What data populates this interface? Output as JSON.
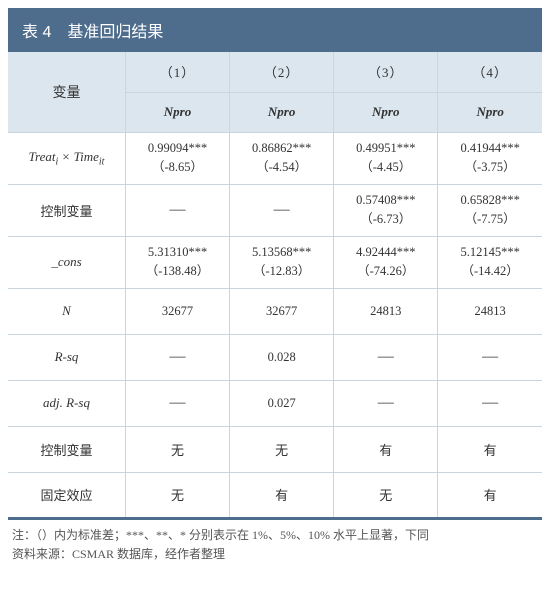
{
  "colors": {
    "title_bg": "#4e6d8d",
    "header_bg": "#dbe6ee",
    "thin_border": "#c9d6df",
    "thick_border": "#4e6d8d",
    "body_text": "#333333",
    "note_text": "#555555"
  },
  "title": "表 4　基准回归结果",
  "var_header": "变量",
  "col_headers": [
    "（1）",
    "（2）",
    "（3）",
    "（4）"
  ],
  "dep_vars": [
    "Npro",
    "Npro",
    "Npro",
    "Npro"
  ],
  "rows": [
    {
      "label_kind": "treat",
      "label_main": "Treat",
      "label_sub1": "i",
      "label_mid": "×",
      "label_main2": "Time",
      "label_sub2": "it",
      "cells": [
        {
          "coef": "0.99094***",
          "t": "（-8.65）"
        },
        {
          "coef": "0.86862***",
          "t": "（-4.54）"
        },
        {
          "coef": "0.49951***",
          "t": "（-4.45）"
        },
        {
          "coef": "0.41944***",
          "t": "（-3.75）"
        }
      ]
    },
    {
      "label_kind": "cn",
      "label": "控制变量",
      "cells": [
        {
          "dash": "—"
        },
        {
          "dash": "—"
        },
        {
          "coef": "0.57408***",
          "t": "（-6.73）"
        },
        {
          "coef": "0.65828***",
          "t": "（-7.75）"
        }
      ]
    },
    {
      "label_kind": "it",
      "label": "_cons",
      "cells": [
        {
          "coef": "5.31310***",
          "t": "（-138.48）"
        },
        {
          "coef": "5.13568***",
          "t": "（-12.83）"
        },
        {
          "coef": "4.92444***",
          "t": "（-74.26）"
        },
        {
          "coef": "5.12145***",
          "t": "（-14.42）"
        }
      ]
    },
    {
      "label_kind": "it",
      "label": "N",
      "single": true,
      "cells": [
        {
          "val": "32677"
        },
        {
          "val": "32677"
        },
        {
          "val": "24813"
        },
        {
          "val": "24813"
        }
      ]
    },
    {
      "label_kind": "it",
      "label": "R-sq",
      "single": true,
      "cells": [
        {
          "dash": "—"
        },
        {
          "val": "0.028"
        },
        {
          "dash": "—"
        },
        {
          "dash": "—"
        }
      ]
    },
    {
      "label_kind": "it",
      "label": "adj. R-sq",
      "single": true,
      "cells": [
        {
          "dash": "—"
        },
        {
          "val": "0.027"
        },
        {
          "dash": "—"
        },
        {
          "dash": "—"
        }
      ]
    },
    {
      "label_kind": "cn",
      "label": "控制变量",
      "single": true,
      "cells": [
        {
          "cn": "无"
        },
        {
          "cn": "无"
        },
        {
          "cn": "有"
        },
        {
          "cn": "有"
        }
      ]
    },
    {
      "label_kind": "cn",
      "label": "固定效应",
      "single": true,
      "last": true,
      "cells": [
        {
          "cn": "无"
        },
        {
          "cn": "有"
        },
        {
          "cn": "无"
        },
        {
          "cn": "有"
        }
      ]
    }
  ],
  "notes_line1": "注：（）内为标准差；***、**、* 分别表示在 1%、5%、10% 水平上显著，下同",
  "notes_line2": "资料来源：CSMAR 数据库，经作者整理"
}
